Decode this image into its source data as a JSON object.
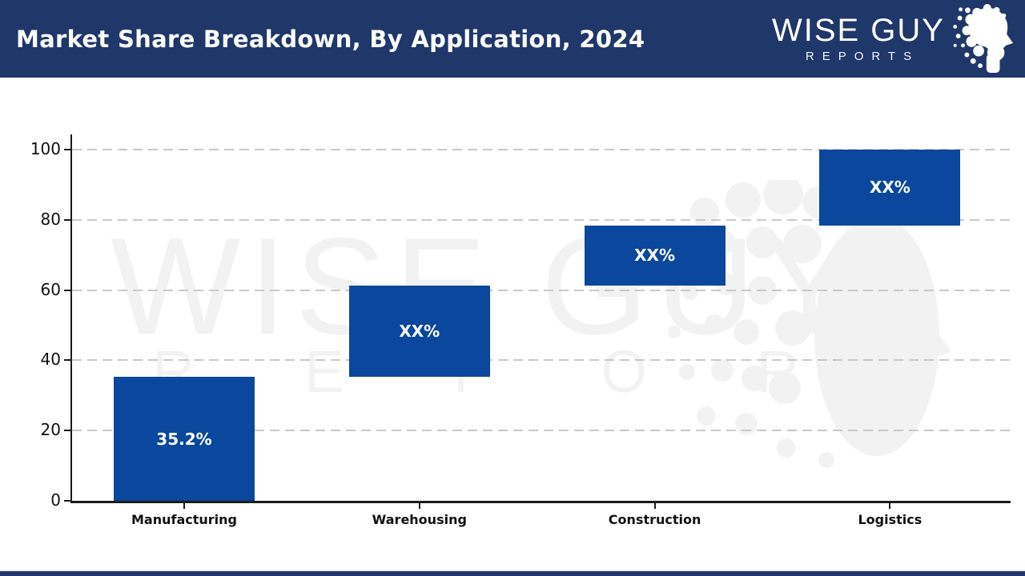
{
  "header": {
    "title": "Market Share Breakdown, By Application, 2024",
    "logo_line1": "WISE GUY",
    "logo_line2": "REPORTS"
  },
  "watermark": {
    "line1": "WISE GUY",
    "line2": "R E P O R T S"
  },
  "colors": {
    "header_bg": "#20376a",
    "footer_bg": "#20376a",
    "bar": "#0a479d",
    "bar_label": "#ffffff",
    "gridline": "#c9c9c9",
    "axis": "#1a1a1a",
    "watermark": "#f2f2f2"
  },
  "chart_data": {
    "type": "bar",
    "variant": "waterfall",
    "title": "Market Share Breakdown, By Application, 2024",
    "categories": [
      "Manufacturing",
      "Warehousing",
      "Construction",
      "Logistics"
    ],
    "segments": [
      {
        "category": "Manufacturing",
        "start": 0,
        "end": 35.2,
        "label": "35.2%"
      },
      {
        "category": "Warehousing",
        "start": 35.2,
        "end": 61.3,
        "label": "XX%"
      },
      {
        "category": "Construction",
        "start": 61.3,
        "end": 78.4,
        "label": "XX%"
      },
      {
        "category": "Logistics",
        "start": 78.4,
        "end": 100,
        "label": "XX%"
      }
    ],
    "xlabel": "",
    "ylabel": "",
    "ylim": [
      0,
      100
    ],
    "yticks": [
      0,
      20,
      40,
      60,
      80,
      100
    ],
    "grid": "horizontal-dashed",
    "legend": "none"
  }
}
